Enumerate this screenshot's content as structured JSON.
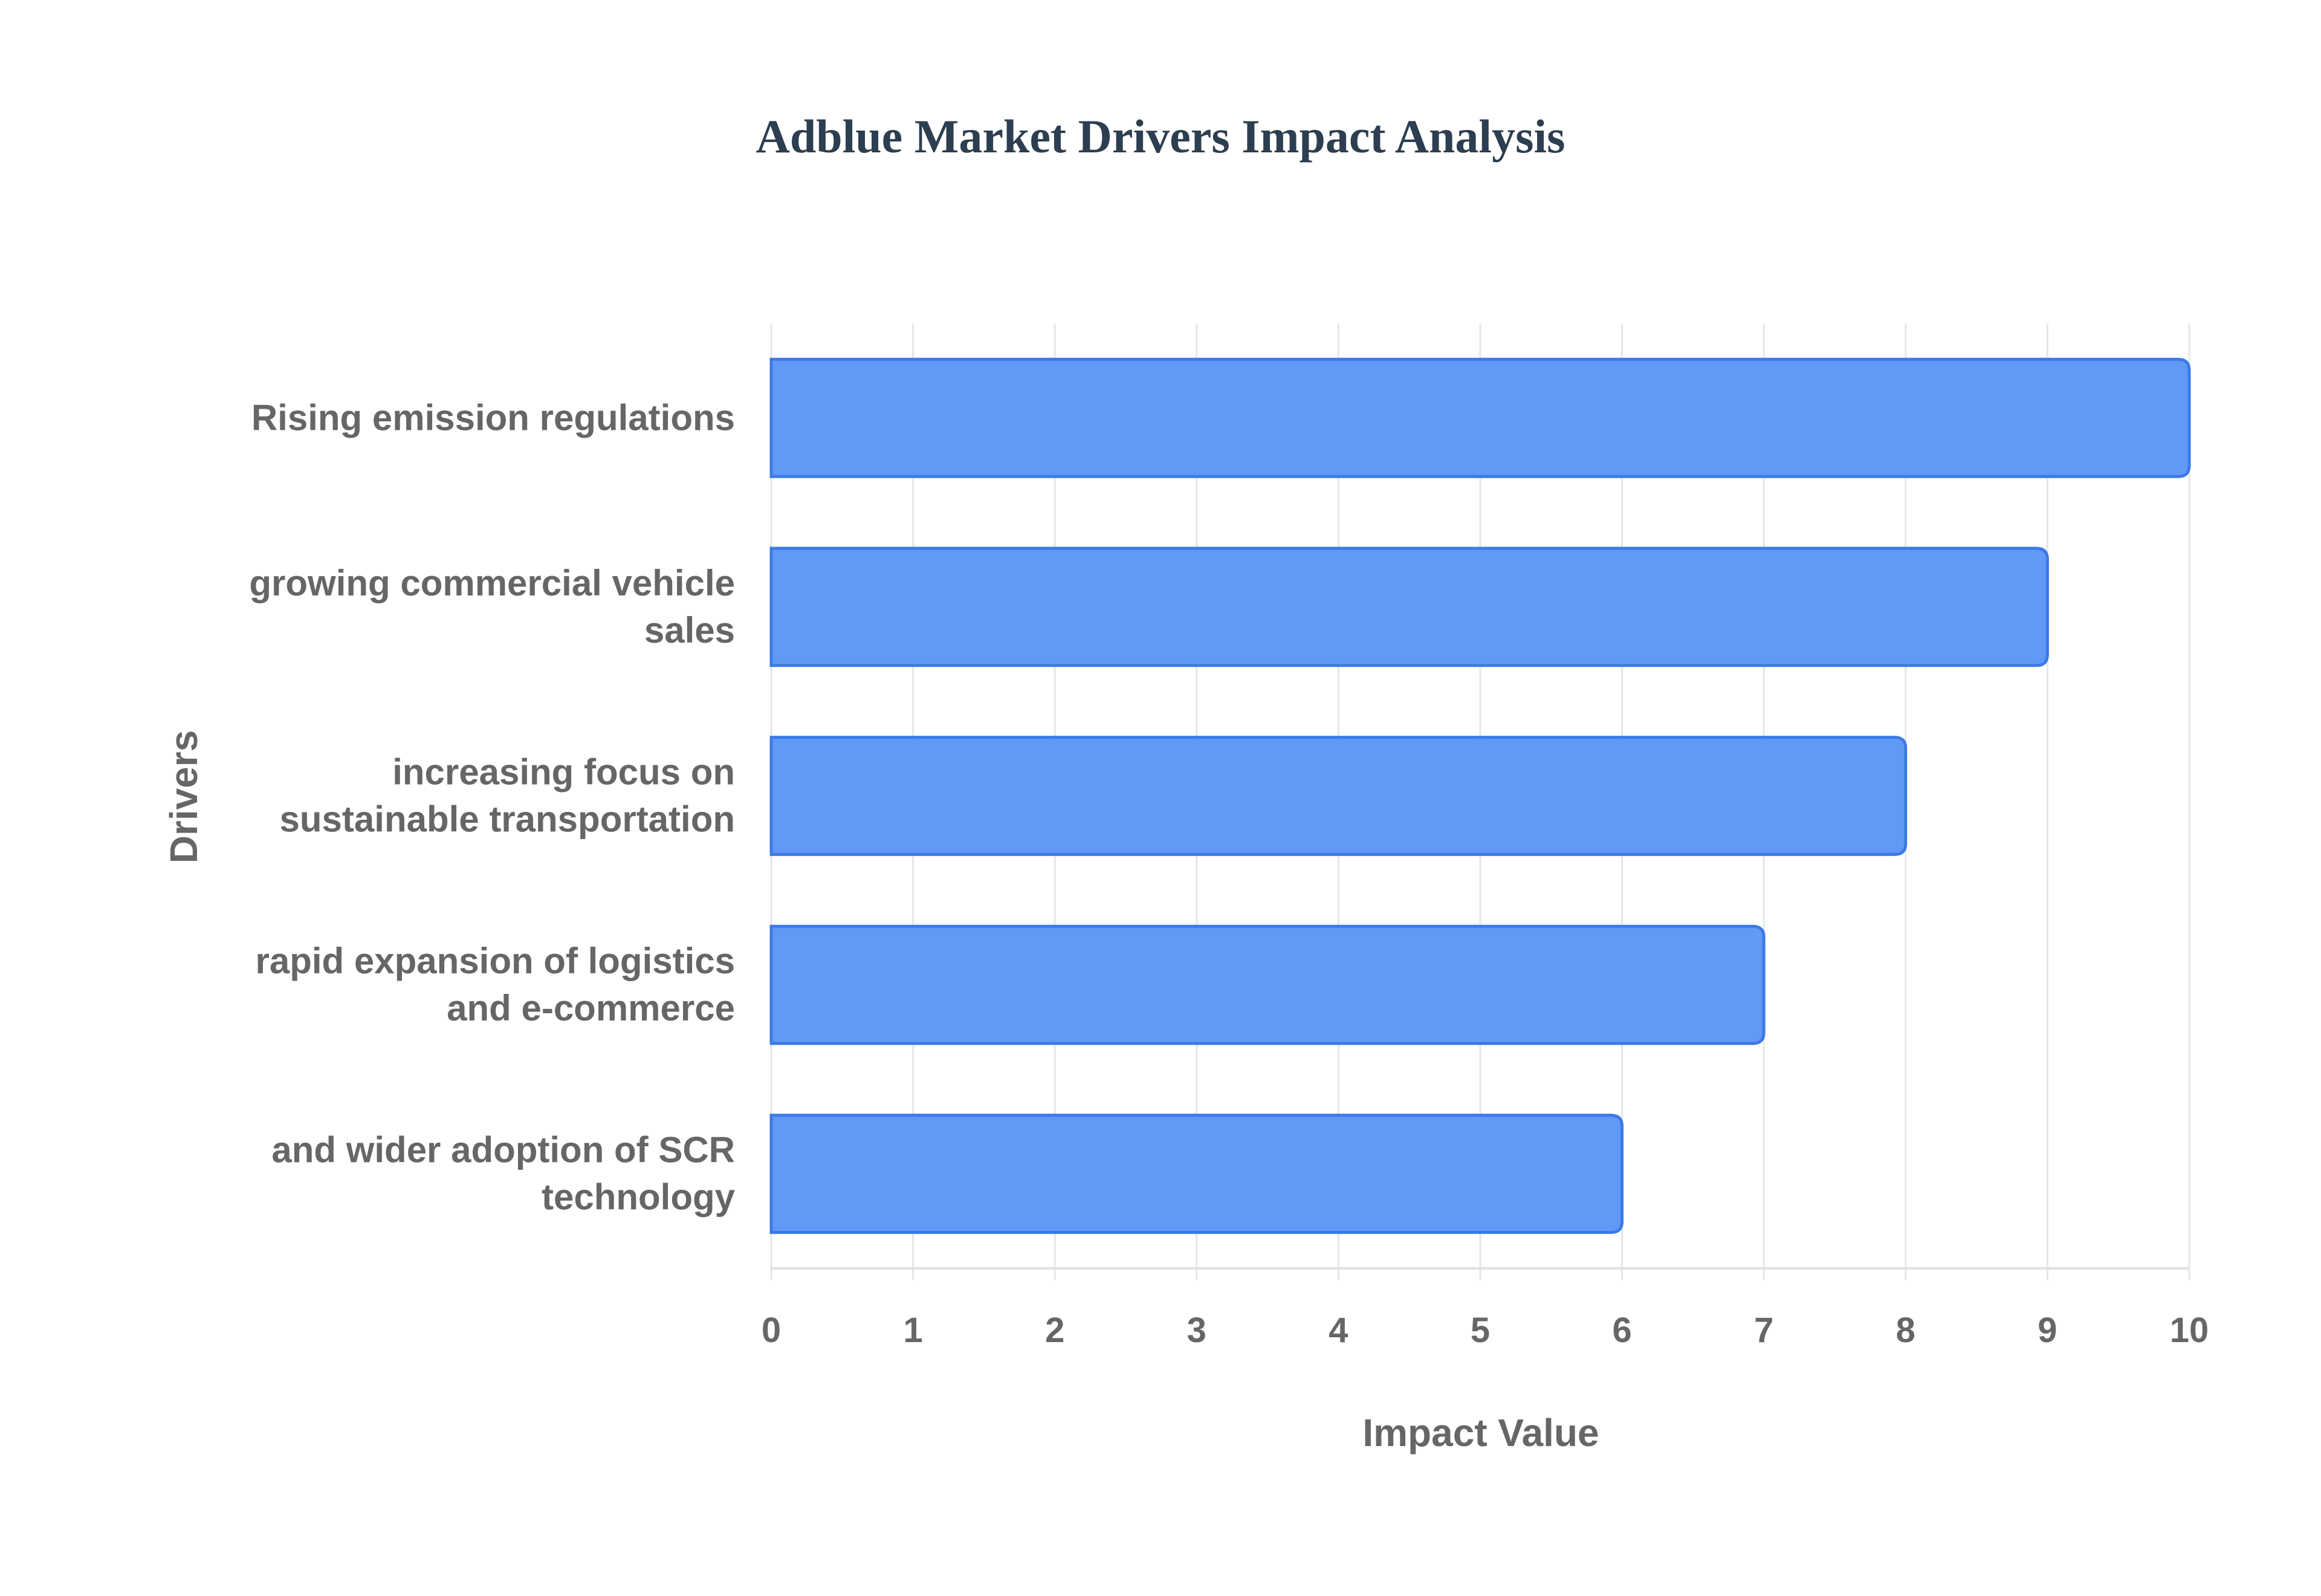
{
  "chart_data": {
    "type": "bar",
    "orientation": "horizontal",
    "title": "Adblue Market Drivers Impact Analysis",
    "xlabel": "Impact Value",
    "ylabel": "Drivers",
    "categories": [
      [
        "Rising emission regulations"
      ],
      [
        "growing commercial vehicle",
        "sales"
      ],
      [
        "increasing focus on",
        "sustainable transportation"
      ],
      [
        "rapid expansion of logistics",
        "and e-commerce"
      ],
      [
        "and wider adoption of SCR",
        "technology"
      ]
    ],
    "values": [
      10,
      9,
      8,
      7,
      6
    ],
    "xlim": [
      0,
      10
    ],
    "xticks": [
      "0",
      "1",
      "2",
      "3",
      "4",
      "5",
      "6",
      "7",
      "8",
      "9",
      "10"
    ],
    "grid": true,
    "bar_color": "#6199f7",
    "bar_border_color": "#3b7ae8"
  }
}
